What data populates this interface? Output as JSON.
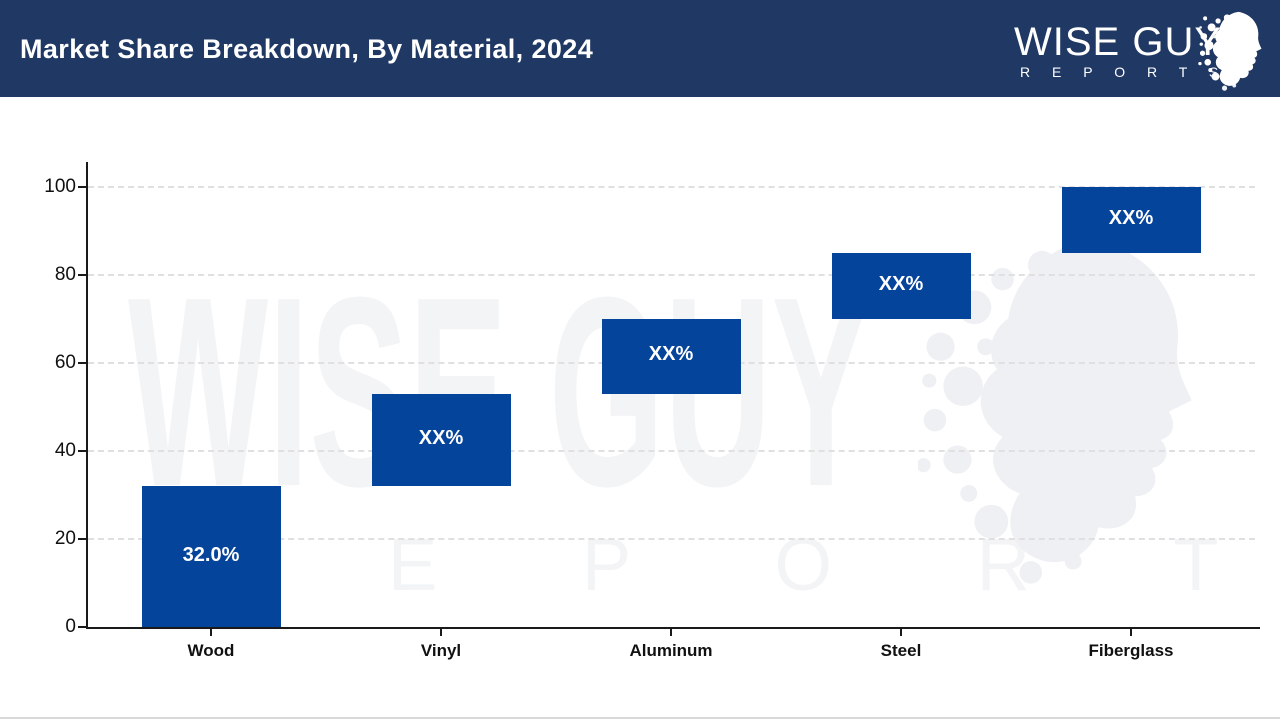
{
  "header": {
    "title": "Market Share Breakdown, By Material, 2024",
    "bg_color": "#1f3864",
    "logo": {
      "line1": "WISE GUY",
      "line2": "R E P O R T S"
    }
  },
  "watermark": {
    "line1": "WISE GUY",
    "line2": "R E P O R T S"
  },
  "chart_data": {
    "type": "bar",
    "subtype": "waterfall",
    "title": "Market Share Breakdown, By Material, 2024",
    "categories": [
      "Wood",
      "Vinyl",
      "Aluminum",
      "Steel",
      "Fiberglass"
    ],
    "segments": [
      {
        "category": "Wood",
        "start": 0,
        "end": 32,
        "label": "32.0%"
      },
      {
        "category": "Vinyl",
        "start": 32,
        "end": 53,
        "label": "XX%"
      },
      {
        "category": "Aluminum",
        "start": 53,
        "end": 70,
        "label": "XX%"
      },
      {
        "category": "Steel",
        "start": 70,
        "end": 85,
        "label": "XX%"
      },
      {
        "category": "Fiberglass",
        "start": 85,
        "end": 100,
        "label": "XX%"
      }
    ],
    "y_ticks": [
      0,
      20,
      40,
      60,
      80,
      100
    ],
    "ylim": [
      0,
      100
    ],
    "xlabel": "",
    "ylabel": "",
    "grid": "horizontal-dashed",
    "legend": "none",
    "bar_color": "#05449b",
    "bar_label_color": "#ffffff"
  }
}
